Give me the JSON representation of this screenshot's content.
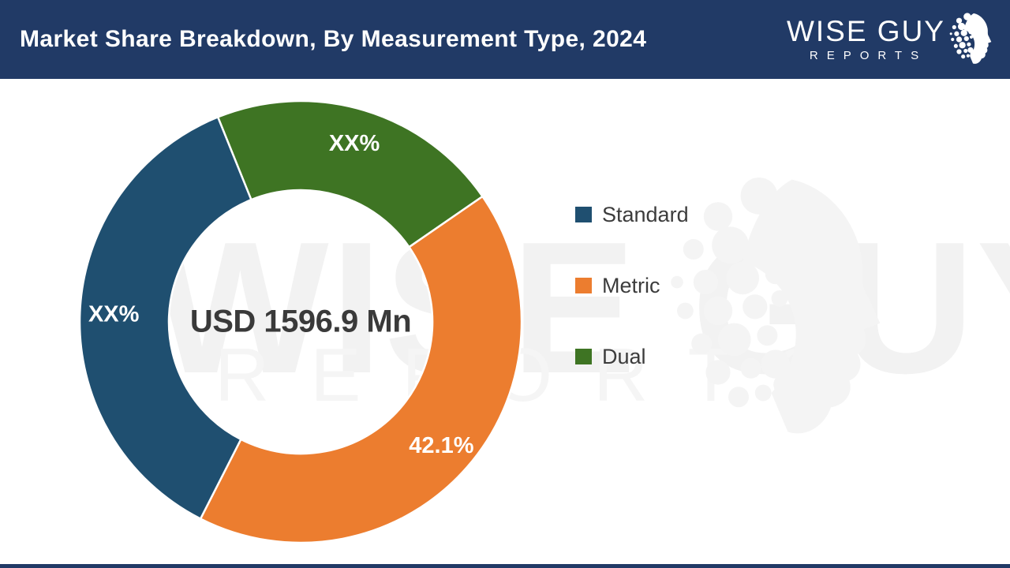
{
  "header": {
    "title": "Market Share Breakdown, By Measurement Type, 2024",
    "logo": {
      "primary": "WISE GUY",
      "secondary": "REPORTS"
    }
  },
  "watermark": {
    "primary": "WISE GUY",
    "secondary": "REPORTS"
  },
  "colors": {
    "header_bg": "#213a66",
    "footer_bar": "#213a66",
    "header_text": "#ffffff",
    "center_text": "#3a3a3a",
    "legend_text": "#3c3c3c",
    "watermark_gray": "#f2f2f2",
    "standard_blue": "#1f4f70",
    "metric_orange": "#ec7d2f",
    "dual_green": "#3e7423"
  },
  "chart_data": {
    "type": "pie",
    "subtype": "donut",
    "title": "Market Share Breakdown, By Measurement Type, 2024",
    "center_label": "USD 1596.9 Mn",
    "legend_position": "right",
    "segments": [
      {
        "name": "Dual",
        "label": "XX%",
        "value": 21.5,
        "color": "#3e7423"
      },
      {
        "name": "Metric",
        "label": "42.1%",
        "value": 42.1,
        "color": "#ec7d2f"
      },
      {
        "name": "Standard",
        "label": "XX%",
        "value": 36.4,
        "color": "#1f4f70"
      }
    ],
    "legend": [
      {
        "label": "Standard",
        "color": "#1f4f70"
      },
      {
        "label": "Metric",
        "color": "#ec7d2f"
      },
      {
        "label": "Dual",
        "color": "#3e7423"
      }
    ]
  }
}
